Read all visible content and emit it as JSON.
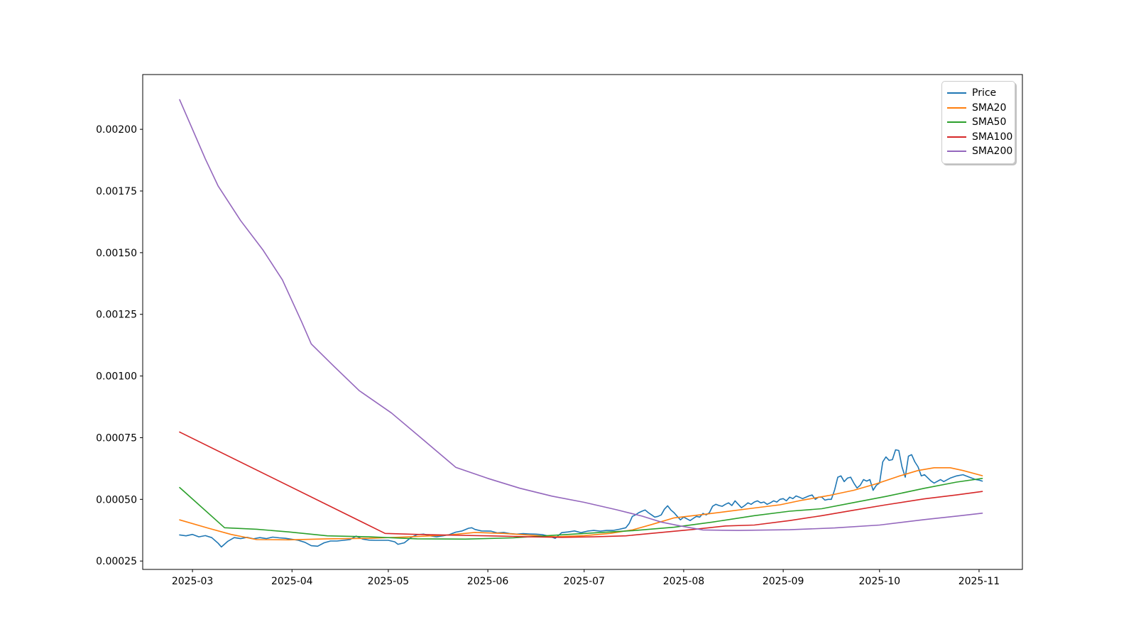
{
  "figure": {
    "background_color": "#ffffff",
    "axes_edge_color": "#000000",
    "tick_label_color": "#000000"
  },
  "legend": {
    "position": "upper right",
    "frame_color": "#cccccc"
  },
  "chart_data": {
    "type": "line",
    "title": "",
    "xlabel": "",
    "ylabel": "",
    "grid": false,
    "legend_position": "upper right",
    "x_unit": "days since 2025-03-01",
    "xlim": [
      -15.5,
      258.5
    ],
    "ylim": [
      0.000216,
      0.002222
    ],
    "x_ticks": [
      {
        "day": 0,
        "label": "2025-03"
      },
      {
        "day": 31,
        "label": "2025-04"
      },
      {
        "day": 61,
        "label": "2025-05"
      },
      {
        "day": 92,
        "label": "2025-06"
      },
      {
        "day": 122,
        "label": "2025-07"
      },
      {
        "day": 153,
        "label": "2025-08"
      },
      {
        "day": 184,
        "label": "2025-09"
      },
      {
        "day": 214,
        "label": "2025-10"
      },
      {
        "day": 245,
        "label": "2025-11"
      }
    ],
    "y_ticks": [
      {
        "value": 0.00025,
        "label": "0.00025"
      },
      {
        "value": 0.0005,
        "label": "0.00050"
      },
      {
        "value": 0.00075,
        "label": "0.00075"
      },
      {
        "value": 0.001,
        "label": "0.00100"
      },
      {
        "value": 0.00125,
        "label": "0.00125"
      },
      {
        "value": 0.0015,
        "label": "0.00150"
      },
      {
        "value": 0.00175,
        "label": "0.00175"
      },
      {
        "value": 0.002,
        "label": "0.00200"
      }
    ],
    "series": [
      {
        "name": "Price",
        "color": "#1f77b4",
        "points": [
          [
            -4,
            0.000356
          ],
          [
            -2,
            0.000352
          ],
          [
            0,
            0.000358
          ],
          [
            2,
            0.000348
          ],
          [
            4,
            0.000353
          ],
          [
            6,
            0.000345
          ],
          [
            8,
            0.000322
          ],
          [
            9,
            0.000307
          ],
          [
            11,
            0.00033
          ],
          [
            13,
            0.000345
          ],
          [
            15,
            0.000341
          ],
          [
            17,
            0.000346
          ],
          [
            19,
            0.00034
          ],
          [
            21,
            0.000345
          ],
          [
            23,
            0.000341
          ],
          [
            25,
            0.000347
          ],
          [
            27,
            0.000344
          ],
          [
            29,
            0.000342
          ],
          [
            31,
            0.000338
          ],
          [
            33,
            0.000334
          ],
          [
            35,
            0.000326
          ],
          [
            37,
            0.000312
          ],
          [
            39,
            0.00031
          ],
          [
            41,
            0.000324
          ],
          [
            43,
            0.000331
          ],
          [
            45,
            0.000331
          ],
          [
            47,
            0.000334
          ],
          [
            49,
            0.000337
          ],
          [
            51,
            0.000351
          ],
          [
            53,
            0.000339
          ],
          [
            55,
            0.000335
          ],
          [
            57,
            0.000334
          ],
          [
            59,
            0.000334
          ],
          [
            61,
            0.000334
          ],
          [
            63,
            0.000328
          ],
          [
            64,
            0.000318
          ],
          [
            66,
            0.000324
          ],
          [
            68,
            0.000345
          ],
          [
            70,
            0.000357
          ],
          [
            72,
            0.000359
          ],
          [
            74,
            0.000352
          ],
          [
            76,
            0.000348
          ],
          [
            78,
            0.000352
          ],
          [
            80,
            0.000357
          ],
          [
            82,
            0.000367
          ],
          [
            84,
            0.000372
          ],
          [
            86,
            0.000383
          ],
          [
            87,
            0.000385
          ],
          [
            88,
            0.000378
          ],
          [
            90,
            0.000372
          ],
          [
            93,
            0.000371
          ],
          [
            95,
            0.000364
          ],
          [
            97,
            0.000366
          ],
          [
            99,
            0.000361
          ],
          [
            101,
            0.000359
          ],
          [
            103,
            0.000361
          ],
          [
            105,
            0.00036
          ],
          [
            107,
            0.000359
          ],
          [
            109,
            0.000357
          ],
          [
            111,
            0.000351
          ],
          [
            113,
            0.000342
          ],
          [
            115,
            0.000365
          ],
          [
            117,
            0.000368
          ],
          [
            119,
            0.000372
          ],
          [
            121,
            0.000365
          ],
          [
            123,
            0.000371
          ],
          [
            125,
            0.000374
          ],
          [
            127,
            0.000371
          ],
          [
            129,
            0.000374
          ],
          [
            131,
            0.000374
          ],
          [
            133,
            0.000379
          ],
          [
            135,
            0.000385
          ],
          [
            136,
            0.000402
          ],
          [
            137,
            0.000431
          ],
          [
            138,
            0.000437
          ],
          [
            139,
            0.000446
          ],
          [
            140,
            0.000452
          ],
          [
            141,
            0.000457
          ],
          [
            142,
            0.000446
          ],
          [
            143,
            0.000437
          ],
          [
            144,
            0.000428
          ],
          [
            145,
            0.000431
          ],
          [
            146,
            0.000437
          ],
          [
            147,
            0.00046
          ],
          [
            148,
            0.000474
          ],
          [
            149,
            0.000457
          ],
          [
            150,
            0.000446
          ],
          [
            151,
            0.000431
          ],
          [
            152,
            0.000417
          ],
          [
            153,
            0.000428
          ],
          [
            155,
            0.000414
          ],
          [
            156,
            0.000423
          ],
          [
            157,
            0.000431
          ],
          [
            158,
            0.000428
          ],
          [
            159,
            0.000443
          ],
          [
            160,
            0.000437
          ],
          [
            161,
            0.000446
          ],
          [
            162,
            0.000472
          ],
          [
            163,
            0.00048
          ],
          [
            164,
            0.000475
          ],
          [
            165,
            0.000472
          ],
          [
            166,
            0.00048
          ],
          [
            167,
            0.000486
          ],
          [
            168,
            0.000475
          ],
          [
            169,
            0.000494
          ],
          [
            170,
            0.00048
          ],
          [
            171,
            0.000466
          ],
          [
            172,
            0.000475
          ],
          [
            173,
            0.000486
          ],
          [
            174,
            0.00048
          ],
          [
            175,
            0.000489
          ],
          [
            176,
            0.000494
          ],
          [
            177,
            0.000486
          ],
          [
            178,
            0.000489
          ],
          [
            179,
            0.00048
          ],
          [
            180,
            0.000486
          ],
          [
            181,
            0.000494
          ],
          [
            182,
            0.000489
          ],
          [
            183,
            0.0005
          ],
          [
            184,
            0.000503
          ],
          [
            185,
            0.000494
          ],
          [
            186,
            0.000509
          ],
          [
            187,
            0.000503
          ],
          [
            188,
            0.000514
          ],
          [
            189,
            0.000509
          ],
          [
            190,
            0.000503
          ],
          [
            192,
            0.000514
          ],
          [
            193,
            0.000518
          ],
          [
            194,
            0.0005
          ],
          [
            195,
            0.000509
          ],
          [
            196,
            0.000509
          ],
          [
            197,
            0.000497
          ],
          [
            198,
            0.0005
          ],
          [
            199,
            0.0005
          ],
          [
            200,
            0.000538
          ],
          [
            201,
            0.00059
          ],
          [
            202,
            0.000595
          ],
          [
            203,
            0.000572
          ],
          [
            204,
            0.000586
          ],
          [
            205,
            0.00059
          ],
          [
            206,
            0.000566
          ],
          [
            207,
            0.000546
          ],
          [
            208,
            0.000557
          ],
          [
            209,
            0.00058
          ],
          [
            210,
            0.000574
          ],
          [
            211,
            0.00058
          ],
          [
            212,
            0.000537
          ],
          [
            213,
            0.000557
          ],
          [
            214,
            0.000566
          ],
          [
            215,
            0.000652
          ],
          [
            216,
            0.000672
          ],
          [
            217,
            0.000658
          ],
          [
            218,
            0.000661
          ],
          [
            219,
            0.000701
          ],
          [
            220,
            0.000698
          ],
          [
            221,
            0.000632
          ],
          [
            222,
            0.00059
          ],
          [
            223,
            0.000675
          ],
          [
            224,
            0.000681
          ],
          [
            225,
            0.000652
          ],
          [
            226,
            0.000632
          ],
          [
            227,
            0.000595
          ],
          [
            228,
            0.0006
          ],
          [
            230,
            0.000575
          ],
          [
            231,
            0.000566
          ],
          [
            233,
            0.00058
          ],
          [
            234,
            0.000572
          ],
          [
            236,
            0.000586
          ],
          [
            238,
            0.000595
          ],
          [
            240,
            0.0006
          ],
          [
            242,
            0.00059
          ],
          [
            244,
            0.00058
          ],
          [
            245,
            0.000578
          ],
          [
            246,
            0.000574
          ]
        ]
      },
      {
        "name": "SMA20",
        "color": "#ff7f0e",
        "points": [
          [
            -4,
            0.000417
          ],
          [
            5,
            0.000383
          ],
          [
            12,
            0.000358
          ],
          [
            20,
            0.000337
          ],
          [
            30,
            0.000336
          ],
          [
            42,
            0.00034
          ],
          [
            55,
            0.000342
          ],
          [
            68,
            0.000348
          ],
          [
            80,
            0.000356
          ],
          [
            88,
            0.000366
          ],
          [
            97,
            0.000362
          ],
          [
            105,
            0.000355
          ],
          [
            113,
            0.000348
          ],
          [
            122,
            0.000353
          ],
          [
            130,
            0.000362
          ],
          [
            137,
            0.000376
          ],
          [
            143,
            0.000398
          ],
          [
            150,
            0.000425
          ],
          [
            158,
            0.000437
          ],
          [
            166,
            0.00045
          ],
          [
            175,
            0.000465
          ],
          [
            183,
            0.000478
          ],
          [
            190,
            0.000497
          ],
          [
            198,
            0.000515
          ],
          [
            206,
            0.000537
          ],
          [
            213,
            0.000563
          ],
          [
            220,
            0.000594
          ],
          [
            226,
            0.000617
          ],
          [
            231,
            0.000628
          ],
          [
            236,
            0.000628
          ],
          [
            240,
            0.000617
          ],
          [
            246,
            0.000596
          ]
        ]
      },
      {
        "name": "SMA50",
        "color": "#2ca02c",
        "points": [
          [
            -4,
            0.000548
          ],
          [
            10,
            0.000385
          ],
          [
            20,
            0.000379
          ],
          [
            30,
            0.000368
          ],
          [
            42,
            0.000352
          ],
          [
            55,
            0.000348
          ],
          [
            70,
            0.00034
          ],
          [
            85,
            0.000339
          ],
          [
            100,
            0.000344
          ],
          [
            112,
            0.000354
          ],
          [
            125,
            0.000364
          ],
          [
            137,
            0.000373
          ],
          [
            150,
            0.000387
          ],
          [
            162,
            0.000408
          ],
          [
            175,
            0.000434
          ],
          [
            186,
            0.000452
          ],
          [
            196,
            0.000462
          ],
          [
            206,
            0.000487
          ],
          [
            216,
            0.000512
          ],
          [
            228,
            0.000545
          ],
          [
            238,
            0.00057
          ],
          [
            246,
            0.000585
          ]
        ]
      },
      {
        "name": "SMA100",
        "color": "#d62728",
        "points": [
          [
            -4,
            0.000773
          ],
          [
            60,
            0.000362
          ],
          [
            70,
            0.000358
          ],
          [
            80,
            0.000355
          ],
          [
            92,
            0.000352
          ],
          [
            105,
            0.000348
          ],
          [
            115,
            0.000346
          ],
          [
            125,
            0.000348
          ],
          [
            135,
            0.000352
          ],
          [
            146,
            0.000366
          ],
          [
            156,
            0.000378
          ],
          [
            166,
            0.000392
          ],
          [
            175,
            0.000396
          ],
          [
            186,
            0.000414
          ],
          [
            196,
            0.000434
          ],
          [
            206,
            0.000456
          ],
          [
            216,
            0.000478
          ],
          [
            228,
            0.000502
          ],
          [
            238,
            0.000518
          ],
          [
            246,
            0.000532
          ]
        ]
      },
      {
        "name": "SMA200",
        "color": "#9467bd",
        "points": [
          [
            -4,
            0.00212
          ],
          [
            0,
            0.002
          ],
          [
            4,
            0.00188
          ],
          [
            8,
            0.00177
          ],
          [
            15,
            0.00163
          ],
          [
            22,
            0.00151
          ],
          [
            28,
            0.00139
          ],
          [
            34,
            0.00122
          ],
          [
            37,
            0.00113
          ],
          [
            44,
            0.00104
          ],
          [
            52,
            0.00094
          ],
          [
            62,
            0.00085
          ],
          [
            72,
            0.00074
          ],
          [
            82,
            0.00063
          ],
          [
            92,
            0.000585
          ],
          [
            102,
            0.000545
          ],
          [
            112,
            0.000513
          ],
          [
            122,
            0.000488
          ],
          [
            132,
            0.000458
          ],
          [
            140,
            0.000432
          ],
          [
            146,
            0.000408
          ],
          [
            152,
            0.000392
          ],
          [
            159,
            0.000376
          ],
          [
            170,
            0.000374
          ],
          [
            186,
            0.000377
          ],
          [
            200,
            0.000384
          ],
          [
            214,
            0.000396
          ],
          [
            228,
            0.000418
          ],
          [
            238,
            0.000432
          ],
          [
            246,
            0.000444
          ]
        ]
      }
    ]
  }
}
